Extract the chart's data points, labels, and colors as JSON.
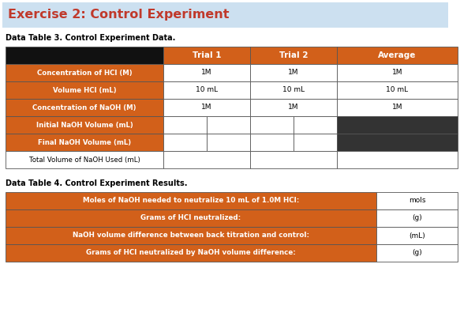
{
  "title": "Exercise 2: Control Experiment",
  "title_color": "#C0392B",
  "title_bg": "#CCE0F0",
  "subtitle3": "Data Table 3. Control Experiment Data.",
  "subtitle4": "Data Table 4. Control Experiment Results.",
  "table3_header": [
    "",
    "Trial 1",
    "Trial 2",
    "Average"
  ],
  "table3_rows": [
    [
      "Concentration of HCl (M)",
      "1M",
      "1M",
      "1M"
    ],
    [
      "Volume HCl (mL)",
      "10 mL",
      "10 mL",
      "10 mL"
    ],
    [
      "Concentration of NaOH (M)",
      "1M",
      "1M",
      "1M"
    ],
    [
      "Initial NaOH Volume (mL)",
      "",
      "",
      ""
    ],
    [
      "Final NaOH Volume (mL)",
      "",
      "",
      ""
    ],
    [
      "Total Volume of NaOH Used (mL)",
      "",
      "",
      ""
    ]
  ],
  "table4_rows": [
    [
      "Moles of NaOH needed to neutralize 10 mL of 1.0M HCl:",
      "mols"
    ],
    [
      "Grams of HCl neutralized:",
      "(g)"
    ],
    [
      "NaOH volume difference between back titration and control:",
      "(mL)"
    ],
    [
      "Grams of HCl neutralized by NaOH volume difference:",
      "(g)"
    ]
  ],
  "orange": "#D2601A",
  "black": "#111111",
  "dark_gray": "#333333",
  "white": "#FFFFFF",
  "border_color": "#666666",
  "fig_w": 6.02,
  "fig_h": 4.2,
  "dpi": 100
}
